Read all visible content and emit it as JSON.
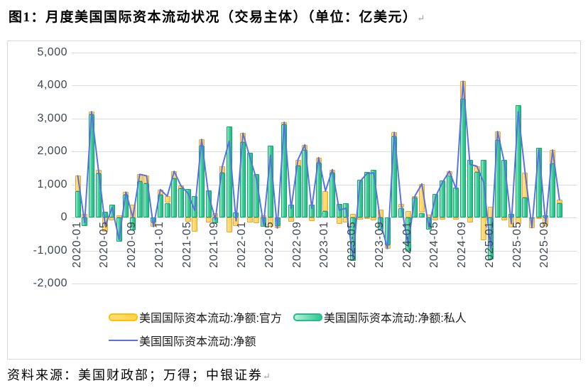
{
  "title": "图1：月度美国国际资本流动状况（交易主体）（单位：亿美元）",
  "pilcrow": "↵",
  "source_note": "资料来源：美国财政部；万得；中银证券",
  "chart_data": {
    "type": "bar",
    "stacked": true,
    "title": "月度美国国际资本流动状况（交易主体）",
    "unit": "亿美元",
    "xlabel": "",
    "ylabel": "",
    "ylim": [
      -2000,
      5000
    ],
    "grid": "horizontal",
    "legend_position": "bottom",
    "ytick_values": [
      5000,
      4000,
      3000,
      2000,
      1000,
      0,
      -1000,
      -2000
    ],
    "yticks": [
      "5,000",
      "4,000",
      "3,000",
      "2,000",
      "1,000",
      "0",
      "-1,000",
      "-2,000"
    ],
    "xtick_every": 4,
    "categories": [
      "2020-01",
      "2020-02",
      "2020-03",
      "2020-04",
      "2020-05",
      "2020-06",
      "2020-07",
      "2020-08",
      "2020-09",
      "2020-10",
      "2020-11",
      "2020-12",
      "2021-01",
      "2021-02",
      "2021-03",
      "2021-04",
      "2021-05",
      "2021-06",
      "2021-07",
      "2021-08",
      "2021-09",
      "2021-10",
      "2021-11",
      "2021-12",
      "2022-01",
      "2022-02",
      "2022-03",
      "2022-04",
      "2022-05",
      "2022-06",
      "2022-07",
      "2022-08",
      "2022-09",
      "2022-10",
      "2022-11",
      "2022-12",
      "2023-01",
      "2023-02",
      "2023-03",
      "2023-04",
      "2023-05",
      "2023-06",
      "2023-07",
      "2023-08",
      "2023-09",
      "2023-10",
      "2023-11",
      "2023-12",
      "2024-01",
      "2024-02",
      "2024-03",
      "2024-04",
      "2024-05",
      "2024-06",
      "2024-07",
      "2024-08",
      "2024-09",
      "2024-10",
      "2024-11",
      "2024-12",
      "2025-01",
      "2025-02",
      "2025-03",
      "2025-04",
      "2025-05",
      "2025-06",
      "2025-07",
      "2025-08",
      "2025-09",
      "2025-10",
      "2025-11"
    ],
    "series": [
      {
        "name": "美国国际资本流动:净额:官方",
        "type": "bar",
        "color": "#FFD24A",
        "border_color": "#E9A43C",
        "values": [
          470,
          100,
          90,
          110,
          -420,
          -90,
          70,
          90,
          390,
          200,
          230,
          -120,
          165,
          200,
          215,
          70,
          -120,
          -430,
          180,
          -140,
          120,
          190,
          -450,
          -250,
          265,
          -140,
          -180,
          60,
          -285,
          -70,
          60,
          -120,
          180,
          150,
          -100,
          160,
          600,
          95,
          -200,
          -150,
          100,
          -70,
          -50,
          -90,
          235,
          -110,
          120,
          110,
          200,
          50,
          875,
          80,
          -80,
          -60,
          120,
          -60,
          530,
          -145,
          180,
          -680,
          320,
          260,
          -90,
          -290,
          -200,
          750,
          -300,
          -50,
          -250,
          400,
          105
        ]
      },
      {
        "name": "美国国际资本流动:净额:私人",
        "type": "bar",
        "color": "#2EC78E",
        "border_color": "#12A26B",
        "values": [
          790,
          -250,
          3110,
          1330,
          170,
          390,
          -730,
          680,
          -390,
          1105,
          1030,
          -160,
          680,
          440,
          1180,
          890,
          855,
          640,
          2180,
          820,
          -180,
          1355,
          2760,
          150,
          2285,
          1965,
          1320,
          -280,
          2165,
          -250,
          2820,
          390,
          1570,
          2050,
          380,
          1650,
          200,
          1355,
          420,
          430,
          -1320,
          1150,
          1380,
          1440,
          -375,
          -830,
          2455,
          290,
          -1030,
          600,
          140,
          -370,
          710,
          1125,
          1280,
          915,
          3590,
          1750,
          1370,
          1735,
          -1270,
          2340,
          1750,
          100,
          3400,
          605,
          -10,
          2105,
          60,
          1640,
          430
        ]
      },
      {
        "name": "美国国际资本流动:净额",
        "type": "line",
        "color": "#5872E6",
        "values": [
          1260,
          -150,
          3200,
          1440,
          -250,
          300,
          -660,
          770,
          0,
          1305,
          1260,
          -280,
          845,
          640,
          1395,
          960,
          735,
          210,
          2360,
          680,
          -60,
          1545,
          2310,
          -100,
          2550,
          1825,
          1140,
          -220,
          1880,
          -320,
          2880,
          270,
          1750,
          2200,
          280,
          1810,
          800,
          1450,
          220,
          280,
          -1220,
          1080,
          1330,
          1350,
          -140,
          -940,
          2575,
          400,
          -830,
          650,
          1015,
          -290,
          630,
          1065,
          1400,
          855,
          4120,
          1605,
          1550,
          1055,
          -950,
          2600,
          1660,
          -190,
          3200,
          1355,
          -310,
          2055,
          -190,
          2040,
          535
        ]
      }
    ]
  }
}
